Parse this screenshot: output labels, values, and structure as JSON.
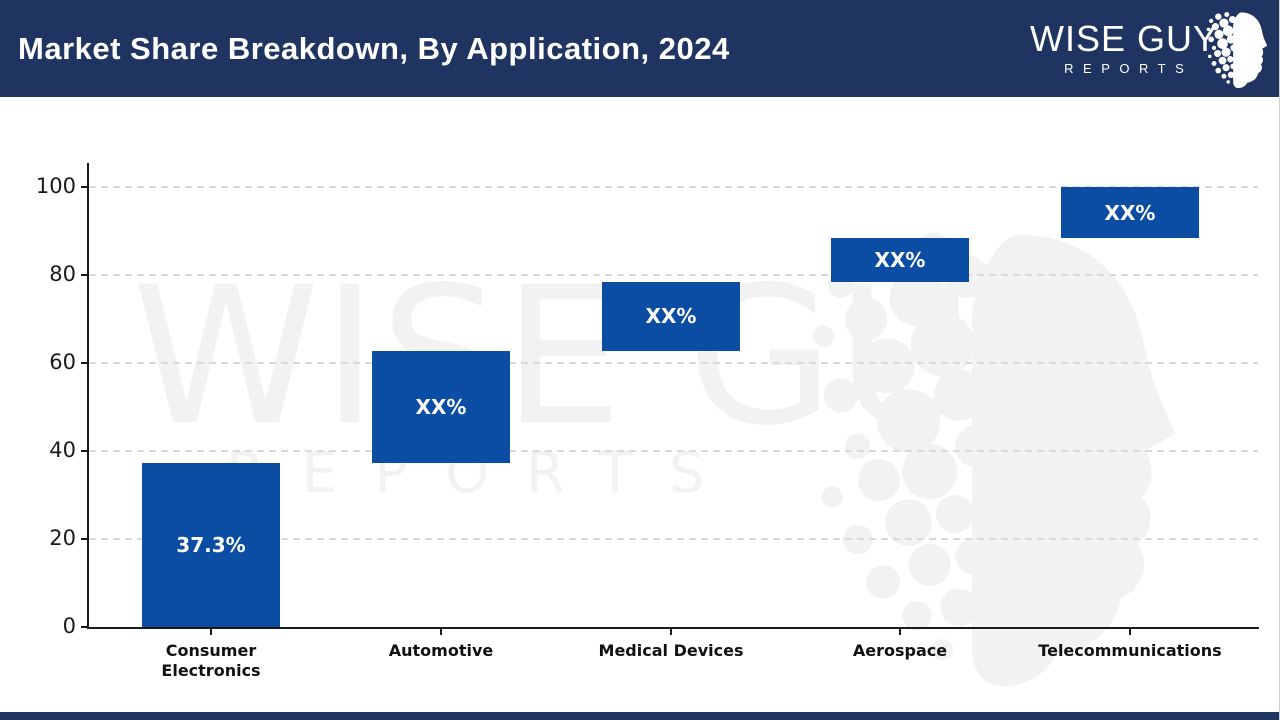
{
  "header": {
    "title": "Market Share Breakdown, By Application, 2024",
    "logo_line1": "WISE GUY",
    "logo_line2": "REPORTS"
  },
  "watermark": {
    "line1": "WISE GUY",
    "line2": "REPORTS"
  },
  "colors": {
    "header_bg": "#1f3461",
    "bar": "#0b4da2",
    "bar_label": "#ffffff",
    "axis": "#1a1a1a",
    "grid": "#d9d9d9",
    "watermark": "#f2f2f2"
  },
  "chart_data": {
    "type": "bar",
    "subtype": "waterfall",
    "title": "Market Share Breakdown, By Application, 2024",
    "categories": [
      "Consumer Electronics",
      "Automotive",
      "Medical Devices",
      "Aerospace",
      "Telecommunications"
    ],
    "category_lines": [
      [
        "Consumer",
        "Electronics"
      ],
      [
        "Automotive"
      ],
      [
        "Medical Devices"
      ],
      [
        "Aerospace"
      ],
      [
        "Telecommunications"
      ]
    ],
    "segments": [
      {
        "category": "Consumer Electronics",
        "start": 0,
        "end": 37.3,
        "delta": 37.3,
        "label": "37.3%"
      },
      {
        "category": "Automotive",
        "start": 37.3,
        "end": 62.7,
        "delta": 25.4,
        "label": "XX%"
      },
      {
        "category": "Medical Devices",
        "start": 62.7,
        "end": 78.5,
        "delta": 15.8,
        "label": "XX%"
      },
      {
        "category": "Aerospace",
        "start": 78.5,
        "end": 88.3,
        "delta": 9.8,
        "label": "XX%"
      },
      {
        "category": "Telecommunications",
        "start": 88.3,
        "end": 100,
        "delta": 11.7,
        "label": "XX%"
      }
    ],
    "ylim": [
      0,
      100
    ],
    "yticks": [
      0,
      20,
      40,
      60,
      80,
      100
    ],
    "xlabel": "",
    "ylabel": "",
    "grid": "horizontal-dashed",
    "legend": "none"
  }
}
